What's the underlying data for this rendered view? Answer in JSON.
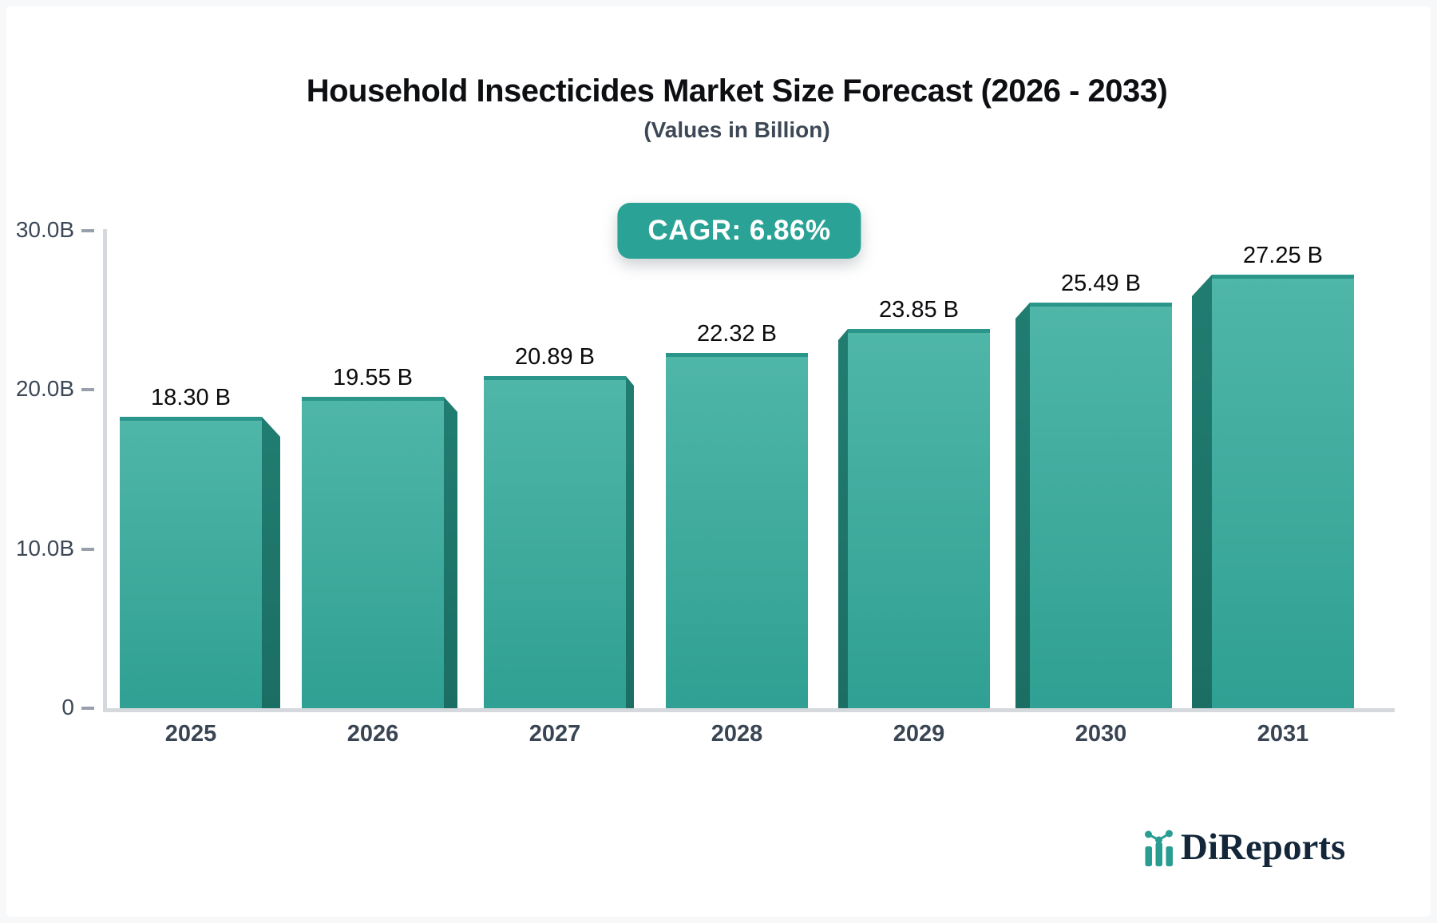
{
  "chart_data": {
    "type": "bar",
    "title": "Household Insecticides Market Size Forecast (2026 - 2033)",
    "subtitle": "(Values in Billion)",
    "badge": "CAGR: 6.86%",
    "categories": [
      "2025",
      "2026",
      "2027",
      "2028",
      "2029",
      "2030",
      "2031"
    ],
    "values": [
      18.3,
      19.55,
      20.89,
      22.32,
      23.85,
      25.49,
      27.25
    ],
    "value_labels": [
      "18.30 B",
      "19.55 B",
      "20.89 B",
      "22.32 B",
      "23.85 B",
      "25.49 B",
      "27.25 B"
    ],
    "yticks": [
      {
        "label": "30.0B",
        "value": 30
      },
      {
        "label": "20.0B",
        "value": 20
      },
      {
        "label": "10.0B",
        "value": 10
      },
      {
        "label": "0",
        "value": 0
      }
    ],
    "ylim": [
      0,
      30
    ],
    "xlabel": "",
    "ylabel": "",
    "grid": false,
    "legend_position": "none",
    "colors": {
      "bar_face_top": "#4fb6a8",
      "bar_face_bottom": "#2fa093",
      "bar_top_edge": "#2a968a",
      "bar_side": "#1f7a6f",
      "badge_background": "#2aa396",
      "badge_text": "#ffffff",
      "axis_line": "#d5d8dd",
      "tick_dash": "#98a0ab",
      "axis_text": "#3c4757",
      "title_text": "#0d0f12",
      "logo_navy": "#13263a",
      "logo_teal": "#2a9d92"
    }
  },
  "branding": {
    "logo_text": "DiReports"
  }
}
